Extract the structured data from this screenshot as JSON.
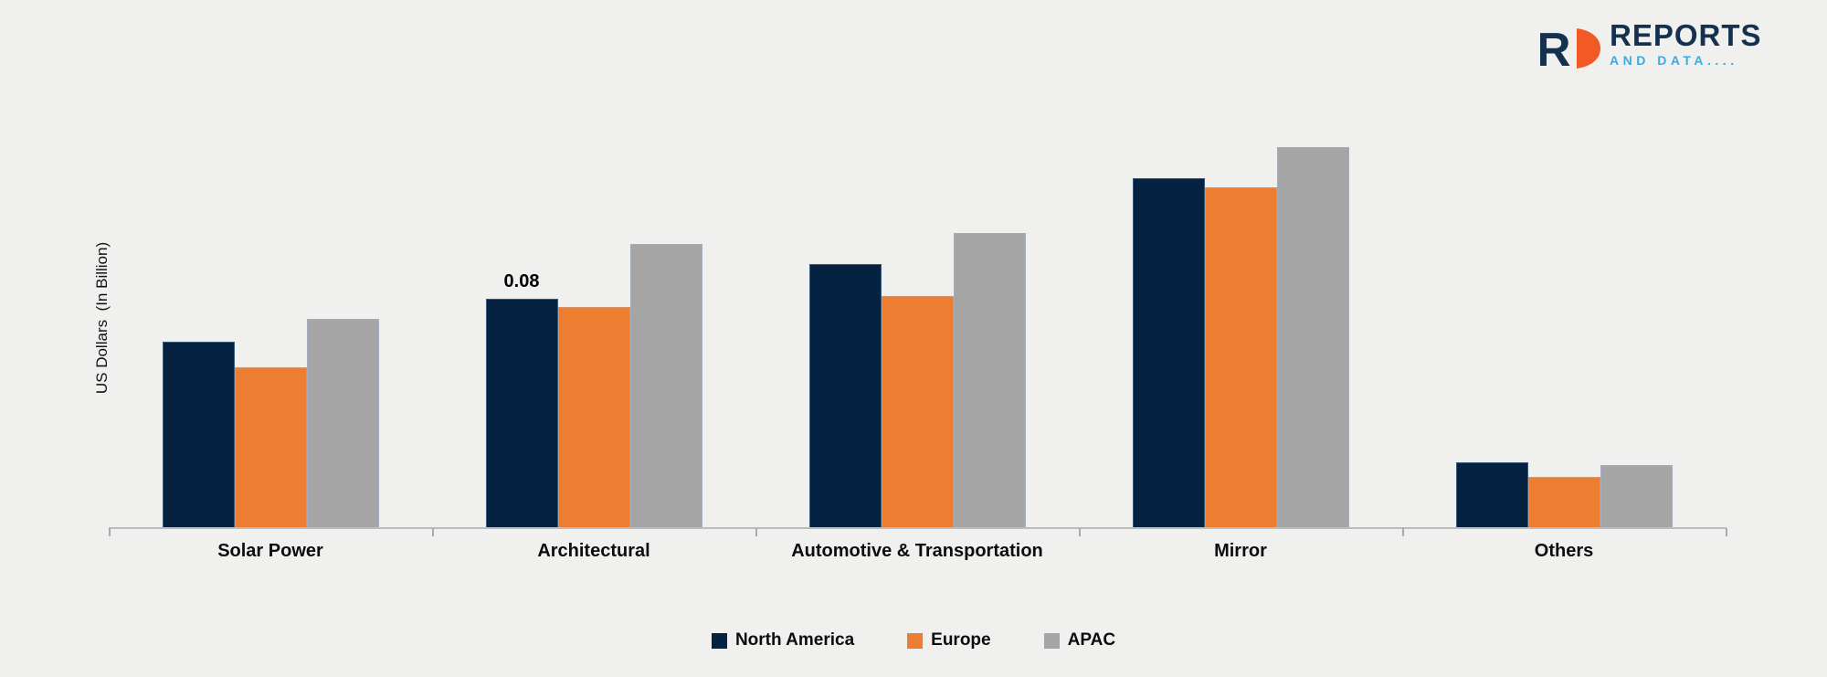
{
  "page": {
    "background": "#f0f0ee"
  },
  "logo": {
    "title": "REPORTS",
    "subtitle": "AND DATA....",
    "colors": {
      "navy": "#16314f",
      "blue": "#3fa9de",
      "orange": "#f15a24"
    }
  },
  "chart_data": {
    "type": "bar",
    "title": "",
    "xlabel": "",
    "ylabel": "US Dollars  (In Billion)",
    "ylim": [
      0,
      0.14
    ],
    "grid": false,
    "legend_position": "bottom",
    "categories": [
      "Solar Power",
      "Architectural",
      "Automotive & Transportation",
      "Mirror",
      "Others"
    ],
    "series": [
      {
        "name": "North America",
        "color": "#052340",
        "values": [
          0.065,
          0.08,
          0.092,
          0.122,
          0.023
        ]
      },
      {
        "name": "Europe",
        "color": "#ed7d31",
        "values": [
          0.056,
          0.077,
          0.081,
          0.119,
          0.018
        ]
      },
      {
        "name": "APAC",
        "color": "#a5a5a5",
        "values": [
          0.073,
          0.099,
          0.103,
          0.133,
          0.022
        ]
      }
    ],
    "data_labels": [
      {
        "category_index": 1,
        "series_index": 0,
        "text": "0.08"
      }
    ]
  },
  "axis": {
    "line_color": "#bcbcbc",
    "tick_color": "#aaaaaa"
  }
}
